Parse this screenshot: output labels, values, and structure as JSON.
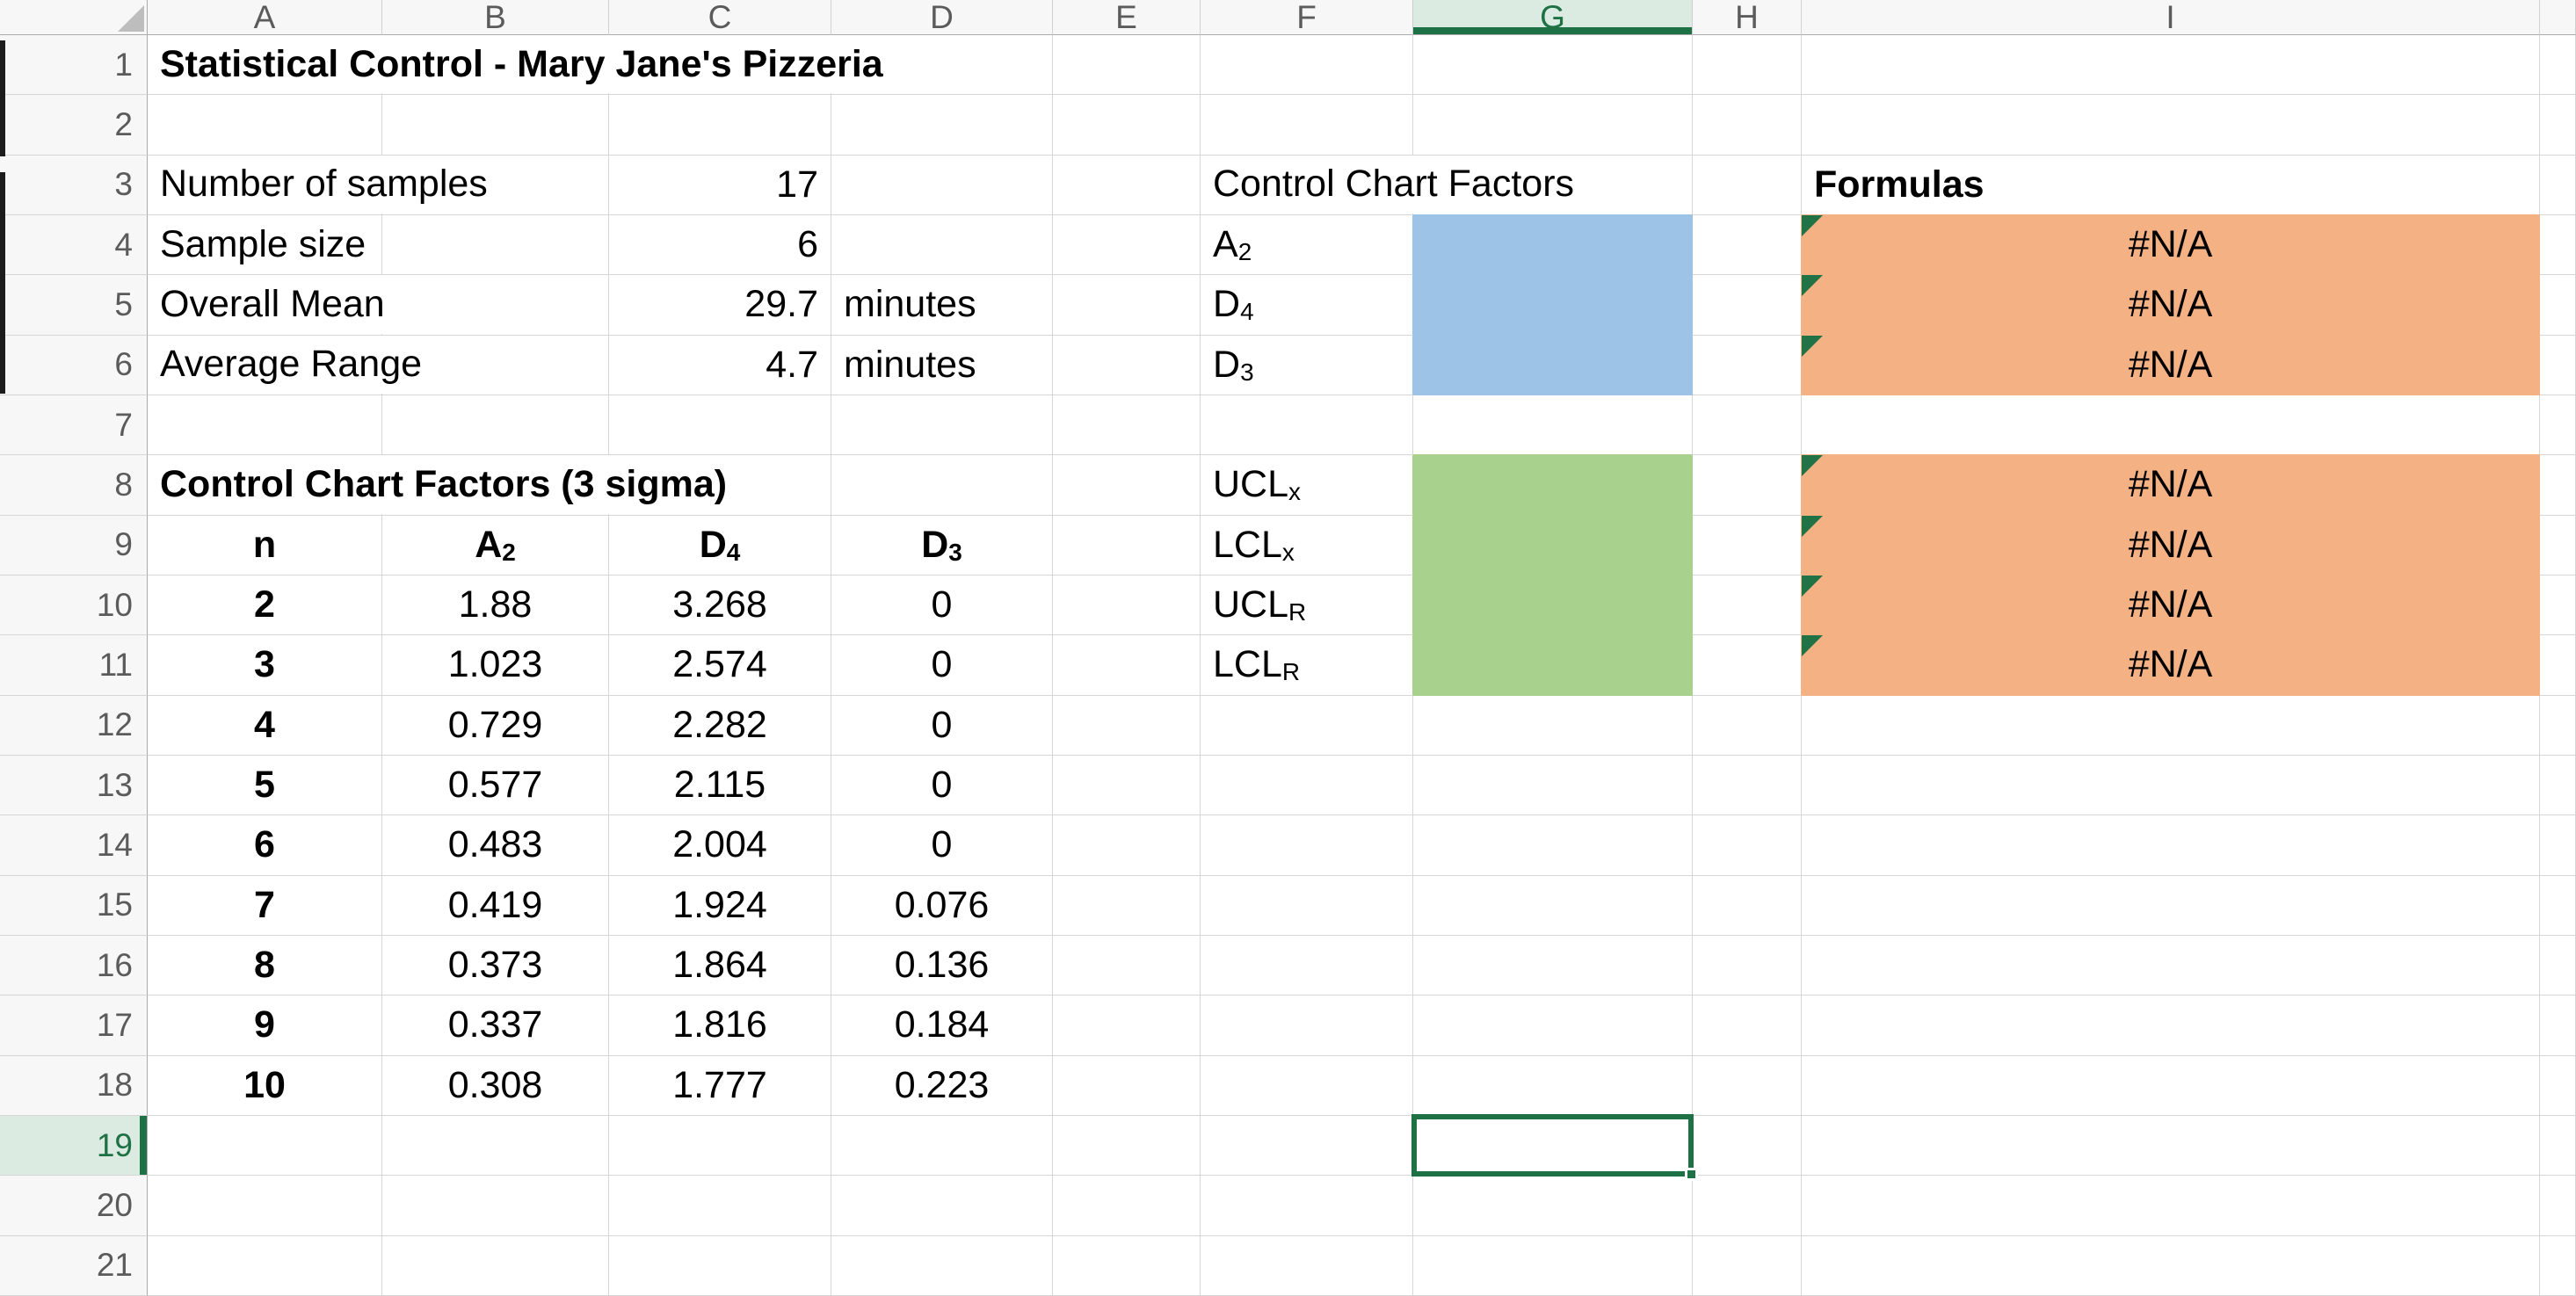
{
  "colors": {
    "accent_green": "#1E7145",
    "header_selected_bg": "#DCEBE2",
    "fill_blue": "#9DC3E6",
    "fill_green": "#A9D18E",
    "fill_orange": "#F4B183",
    "error_triangle": "#217346",
    "gridline": "#D6D6D6",
    "header_line": "#ABABAB",
    "header_bg": "#F7F7F7",
    "header_text": "#5B5B5B"
  },
  "sheet": {
    "column_letters": [
      "A",
      "B",
      "C",
      "D",
      "E",
      "F",
      "G",
      "H",
      "I"
    ],
    "visible_row_count": 21,
    "selection": {
      "cell": "G19",
      "column": "G",
      "row": "19"
    },
    "cells": [
      {
        "ref": "A1",
        "text": "Statistical Control - Mary Jane's Pizzeria",
        "bold": true,
        "spill": true
      },
      {
        "ref": "A3",
        "text": "Number of samples",
        "spill": true
      },
      {
        "ref": "C3",
        "text": "17",
        "align": "right"
      },
      {
        "ref": "F3",
        "text": "Control Chart Factors",
        "spill": true
      },
      {
        "ref": "I3",
        "text": "Formulas",
        "bold": true
      },
      {
        "ref": "A4",
        "text": "Sample size",
        "spill": true
      },
      {
        "ref": "C4",
        "text": "6",
        "align": "right"
      },
      {
        "ref": "F4",
        "parts": [
          {
            "t": "A"
          },
          {
            "t": "2",
            "sub": true
          }
        ]
      },
      {
        "ref": "G4",
        "fill": "blue"
      },
      {
        "ref": "I4",
        "text": "#N/A",
        "align": "center",
        "fill": "orange",
        "error": true
      },
      {
        "ref": "A5",
        "text": "Overall Mean",
        "spill": true
      },
      {
        "ref": "C5",
        "text": "29.7",
        "align": "right"
      },
      {
        "ref": "D5",
        "text": "minutes"
      },
      {
        "ref": "F5",
        "parts": [
          {
            "t": "D"
          },
          {
            "t": "4",
            "sub": true
          }
        ]
      },
      {
        "ref": "G5",
        "fill": "blue"
      },
      {
        "ref": "I5",
        "text": "#N/A",
        "align": "center",
        "fill": "orange",
        "error": true
      },
      {
        "ref": "A6",
        "text": "Average Range",
        "spill": true
      },
      {
        "ref": "C6",
        "text": "4.7",
        "align": "right"
      },
      {
        "ref": "D6",
        "text": "minutes"
      },
      {
        "ref": "F6",
        "parts": [
          {
            "t": "D"
          },
          {
            "t": "3",
            "sub": true
          }
        ]
      },
      {
        "ref": "G6",
        "fill": "blue"
      },
      {
        "ref": "I6",
        "text": "#N/A",
        "align": "center",
        "fill": "orange",
        "error": true
      },
      {
        "ref": "A8",
        "text": "Control Chart Factors (3 sigma)",
        "bold": true,
        "spill": true
      },
      {
        "ref": "F8",
        "parts": [
          {
            "t": "UCL"
          },
          {
            "t": "x",
            "sub": true
          }
        ]
      },
      {
        "ref": "G8",
        "fill": "green"
      },
      {
        "ref": "I8",
        "text": "#N/A",
        "align": "center",
        "fill": "orange",
        "error": true
      },
      {
        "ref": "A9",
        "text": "n",
        "bold": true,
        "align": "center"
      },
      {
        "ref": "B9",
        "bold": true,
        "align": "center",
        "parts": [
          {
            "t": "A"
          },
          {
            "t": "2",
            "sub": true
          }
        ]
      },
      {
        "ref": "C9",
        "bold": true,
        "align": "center",
        "parts": [
          {
            "t": "D"
          },
          {
            "t": "4",
            "sub": true
          }
        ]
      },
      {
        "ref": "D9",
        "bold": true,
        "align": "center",
        "parts": [
          {
            "t": "D"
          },
          {
            "t": "3",
            "sub": true
          }
        ]
      },
      {
        "ref": "F9",
        "parts": [
          {
            "t": "LCL"
          },
          {
            "t": "x",
            "sub": true
          }
        ]
      },
      {
        "ref": "G9",
        "fill": "green"
      },
      {
        "ref": "I9",
        "text": "#N/A",
        "align": "center",
        "fill": "orange",
        "error": true
      },
      {
        "ref": "A10",
        "text": "2",
        "bold": true,
        "align": "center"
      },
      {
        "ref": "B10",
        "text": "1.88",
        "align": "center"
      },
      {
        "ref": "C10",
        "text": "3.268",
        "align": "center"
      },
      {
        "ref": "D10",
        "text": "0",
        "align": "center"
      },
      {
        "ref": "F10",
        "parts": [
          {
            "t": "UCL"
          },
          {
            "t": "R",
            "sub": true
          }
        ]
      },
      {
        "ref": "G10",
        "fill": "green"
      },
      {
        "ref": "I10",
        "text": "#N/A",
        "align": "center",
        "fill": "orange",
        "error": true
      },
      {
        "ref": "A11",
        "text": "3",
        "bold": true,
        "align": "center"
      },
      {
        "ref": "B11",
        "text": "1.023",
        "align": "center"
      },
      {
        "ref": "C11",
        "text": "2.574",
        "align": "center"
      },
      {
        "ref": "D11",
        "text": "0",
        "align": "center"
      },
      {
        "ref": "F11",
        "parts": [
          {
            "t": "LCL"
          },
          {
            "t": "R",
            "sub": true
          }
        ]
      },
      {
        "ref": "G11",
        "fill": "green"
      },
      {
        "ref": "I11",
        "text": "#N/A",
        "align": "center",
        "fill": "orange",
        "error": true
      },
      {
        "ref": "A12",
        "text": "4",
        "bold": true,
        "align": "center"
      },
      {
        "ref": "B12",
        "text": "0.729",
        "align": "center"
      },
      {
        "ref": "C12",
        "text": "2.282",
        "align": "center"
      },
      {
        "ref": "D12",
        "text": "0",
        "align": "center"
      },
      {
        "ref": "A13",
        "text": "5",
        "bold": true,
        "align": "center"
      },
      {
        "ref": "B13",
        "text": "0.577",
        "align": "center"
      },
      {
        "ref": "C13",
        "text": "2.115",
        "align": "center"
      },
      {
        "ref": "D13",
        "text": "0",
        "align": "center"
      },
      {
        "ref": "A14",
        "text": "6",
        "bold": true,
        "align": "center"
      },
      {
        "ref": "B14",
        "text": "0.483",
        "align": "center"
      },
      {
        "ref": "C14",
        "text": "2.004",
        "align": "center"
      },
      {
        "ref": "D14",
        "text": "0",
        "align": "center"
      },
      {
        "ref": "A15",
        "text": "7",
        "bold": true,
        "align": "center"
      },
      {
        "ref": "B15",
        "text": "0.419",
        "align": "center"
      },
      {
        "ref": "C15",
        "text": "1.924",
        "align": "center"
      },
      {
        "ref": "D15",
        "text": "0.076",
        "align": "center"
      },
      {
        "ref": "A16",
        "text": "8",
        "bold": true,
        "align": "center"
      },
      {
        "ref": "B16",
        "text": "0.373",
        "align": "center"
      },
      {
        "ref": "C16",
        "text": "1.864",
        "align": "center"
      },
      {
        "ref": "D16",
        "text": "0.136",
        "align": "center"
      },
      {
        "ref": "A17",
        "text": "9",
        "bold": true,
        "align": "center"
      },
      {
        "ref": "B17",
        "text": "0.337",
        "align": "center"
      },
      {
        "ref": "C17",
        "text": "1.816",
        "align": "center"
      },
      {
        "ref": "D17",
        "text": "0.184",
        "align": "center"
      },
      {
        "ref": "A18",
        "text": "10",
        "bold": true,
        "align": "center"
      },
      {
        "ref": "B18",
        "text": "0.308",
        "align": "center"
      },
      {
        "ref": "C18",
        "text": "1.777",
        "align": "center"
      },
      {
        "ref": "D18",
        "text": "0.223",
        "align": "center"
      }
    ]
  }
}
